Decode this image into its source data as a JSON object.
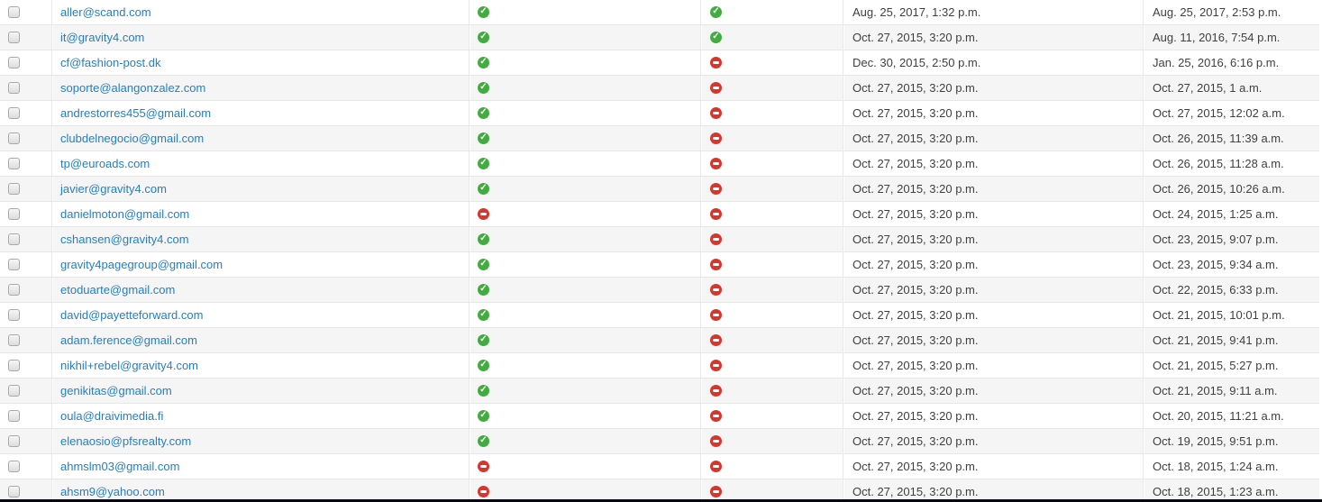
{
  "colors": {
    "link_blue": "#2181c4",
    "yes_green": "#42ad3f",
    "no_red": "#d9352c",
    "row_alt_bg": "#f5f5f5",
    "row_border": "#e8e8e8",
    "datetime_text": "#404040"
  },
  "icons": {
    "yes": "check-circle-icon",
    "no": "minus-circle-icon",
    "yes_glyph": "✓",
    "no_glyph": "−"
  },
  "table": {
    "rows": [
      {
        "email": "aller@scand.com",
        "status1": "yes",
        "status2": "yes",
        "datetime1": "Aug. 25, 2017, 1:32 p.m.",
        "datetime2": "Aug. 25, 2017, 2:53 p.m."
      },
      {
        "email": "it@gravity4.com",
        "status1": "yes",
        "status2": "yes",
        "datetime1": "Oct. 27, 2015, 3:20 p.m.",
        "datetime2": "Aug. 11, 2016, 7:54 p.m."
      },
      {
        "email": "cf@fashion-post.dk",
        "status1": "yes",
        "status2": "no",
        "datetime1": "Dec. 30, 2015, 2:50 p.m.",
        "datetime2": "Jan. 25, 2016, 6:16 p.m."
      },
      {
        "email": "soporte@alangonzalez.com",
        "status1": "yes",
        "status2": "no",
        "datetime1": "Oct. 27, 2015, 3:20 p.m.",
        "datetime2": "Oct. 27, 2015, 1 a.m."
      },
      {
        "email": "andrestorres455@gmail.com",
        "status1": "yes",
        "status2": "no",
        "datetime1": "Oct. 27, 2015, 3:20 p.m.",
        "datetime2": "Oct. 27, 2015, 12:02 a.m."
      },
      {
        "email": "clubdelnegocio@gmail.com",
        "status1": "yes",
        "status2": "no",
        "datetime1": "Oct. 27, 2015, 3:20 p.m.",
        "datetime2": "Oct. 26, 2015, 11:39 a.m."
      },
      {
        "email": "tp@euroads.com",
        "status1": "yes",
        "status2": "no",
        "datetime1": "Oct. 27, 2015, 3:20 p.m.",
        "datetime2": "Oct. 26, 2015, 11:28 a.m."
      },
      {
        "email": "javier@gravity4.com",
        "status1": "yes",
        "status2": "no",
        "datetime1": "Oct. 27, 2015, 3:20 p.m.",
        "datetime2": "Oct. 26, 2015, 10:26 a.m."
      },
      {
        "email": "danielmoton@gmail.com",
        "status1": "no",
        "status2": "no",
        "datetime1": "Oct. 27, 2015, 3:20 p.m.",
        "datetime2": "Oct. 24, 2015, 1:25 a.m."
      },
      {
        "email": "cshansen@gravity4.com",
        "status1": "yes",
        "status2": "no",
        "datetime1": "Oct. 27, 2015, 3:20 p.m.",
        "datetime2": "Oct. 23, 2015, 9:07 p.m."
      },
      {
        "email": "gravity4pagegroup@gmail.com",
        "status1": "yes",
        "status2": "no",
        "datetime1": "Oct. 27, 2015, 3:20 p.m.",
        "datetime2": "Oct. 23, 2015, 9:34 a.m."
      },
      {
        "email": "etoduarte@gmail.com",
        "status1": "yes",
        "status2": "no",
        "datetime1": "Oct. 27, 2015, 3:20 p.m.",
        "datetime2": "Oct. 22, 2015, 6:33 p.m."
      },
      {
        "email": "david@payetteforward.com",
        "status1": "yes",
        "status2": "no",
        "datetime1": "Oct. 27, 2015, 3:20 p.m.",
        "datetime2": "Oct. 21, 2015, 10:01 p.m."
      },
      {
        "email": "adam.ference@gmail.com",
        "status1": "yes",
        "status2": "no",
        "datetime1": "Oct. 27, 2015, 3:20 p.m.",
        "datetime2": "Oct. 21, 2015, 9:41 p.m."
      },
      {
        "email": "nikhil+rebel@gravity4.com",
        "status1": "yes",
        "status2": "no",
        "datetime1": "Oct. 27, 2015, 3:20 p.m.",
        "datetime2": "Oct. 21, 2015, 5:27 p.m."
      },
      {
        "email": "genikitas@gmail.com",
        "status1": "yes",
        "status2": "no",
        "datetime1": "Oct. 27, 2015, 3:20 p.m.",
        "datetime2": "Oct. 21, 2015, 9:11 a.m."
      },
      {
        "email": "oula@draivimedia.fi",
        "status1": "yes",
        "status2": "no",
        "datetime1": "Oct. 27, 2015, 3:20 p.m.",
        "datetime2": "Oct. 20, 2015, 11:21 a.m."
      },
      {
        "email": "elenaosio@pfsrealty.com",
        "status1": "yes",
        "status2": "no",
        "datetime1": "Oct. 27, 2015, 3:20 p.m.",
        "datetime2": "Oct. 19, 2015, 9:51 p.m."
      },
      {
        "email": "ahmslm03@gmail.com",
        "status1": "no",
        "status2": "no",
        "datetime1": "Oct. 27, 2015, 3:20 p.m.",
        "datetime2": "Oct. 18, 2015, 1:24 a.m."
      },
      {
        "email": "ahsm9@yahoo.com",
        "status1": "no",
        "status2": "no",
        "datetime1": "Oct. 27, 2015, 3:20 p.m.",
        "datetime2": "Oct. 18, 2015, 1:23 a.m."
      }
    ]
  }
}
